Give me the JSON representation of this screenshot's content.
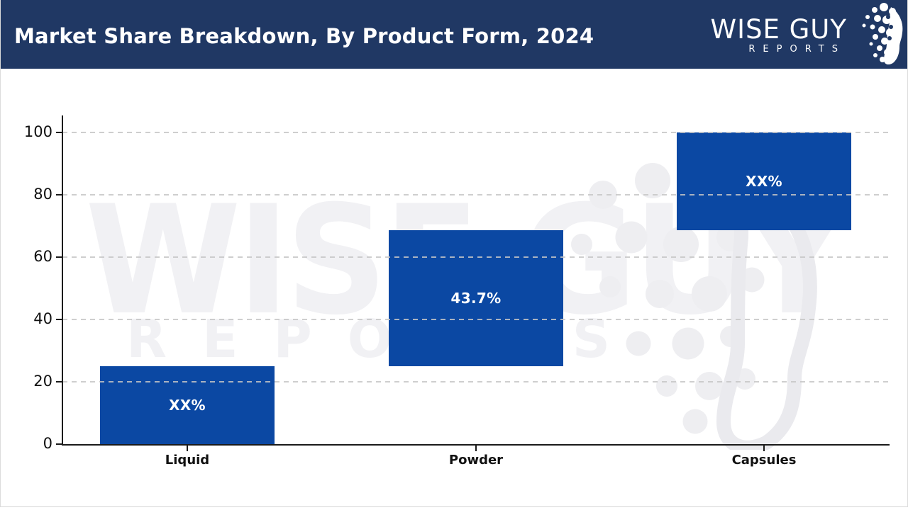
{
  "header": {
    "title": "Market Share Breakdown, By Product Form, 2024",
    "logo": {
      "line1": "WISE GUY",
      "line2": "REPORTS",
      "face_icon": "dotted-head-profile"
    }
  },
  "watermark": {
    "line1": "WISE GUY",
    "line2": "REPORTS",
    "face_icon": "dotted-head-profile"
  },
  "chart_data": {
    "type": "bar",
    "subtype": "floating-waterfall",
    "title": "Market Share Breakdown, By Product Form, 2024",
    "categories": [
      "Liquid",
      "Powder",
      "Capsules"
    ],
    "series": [
      {
        "name": "Market share (%)",
        "base": [
          0,
          25,
          68.7
        ],
        "height": [
          25,
          43.7,
          31.3
        ]
      }
    ],
    "bar_labels": [
      "XX%",
      "43.7%",
      "XX%"
    ],
    "xlabel": "",
    "ylabel": "",
    "ylim": [
      0,
      100
    ],
    "yticks": [
      0,
      20,
      40,
      60,
      80,
      100
    ],
    "grid": {
      "axis": "y",
      "style": "dashed",
      "over_bars": true
    },
    "legend": "none",
    "colors": {
      "bar": "#0b48a3",
      "grid": "#c6c6c6",
      "axis": "#1a1a1a",
      "header_bg": "#203864",
      "bar_label_text": "#ffffff",
      "watermark": "#f1f1f4"
    }
  }
}
